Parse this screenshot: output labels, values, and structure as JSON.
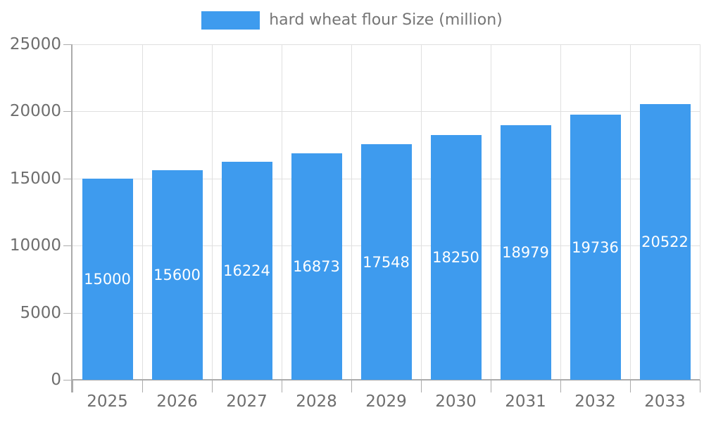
{
  "chart_data": {
    "type": "bar",
    "title": "",
    "categories": [
      "2025",
      "2026",
      "2027",
      "2028",
      "2029",
      "2030",
      "2031",
      "2032",
      "2033"
    ],
    "series": [
      {
        "name": "hard wheat flour Size (million)",
        "values": [
          15000,
          15600,
          16224,
          16873,
          17548,
          18250,
          18979,
          19736,
          20522
        ]
      }
    ],
    "xlabel": "",
    "ylabel": "",
    "ylim": [
      0,
      25000
    ],
    "yticks": [
      0,
      5000,
      10000,
      15000,
      20000,
      25000
    ],
    "grid": true,
    "legend_position": "top",
    "bar_value_labels": "inside-center"
  },
  "colors": {
    "bar": "#3E9BEE",
    "bar_label": "#FFFFFF",
    "grid_line": "#E0E0E0",
    "axis_line": "#ABABAB",
    "tick_label": "#6E6E6E",
    "legend_text": "#757575"
  }
}
